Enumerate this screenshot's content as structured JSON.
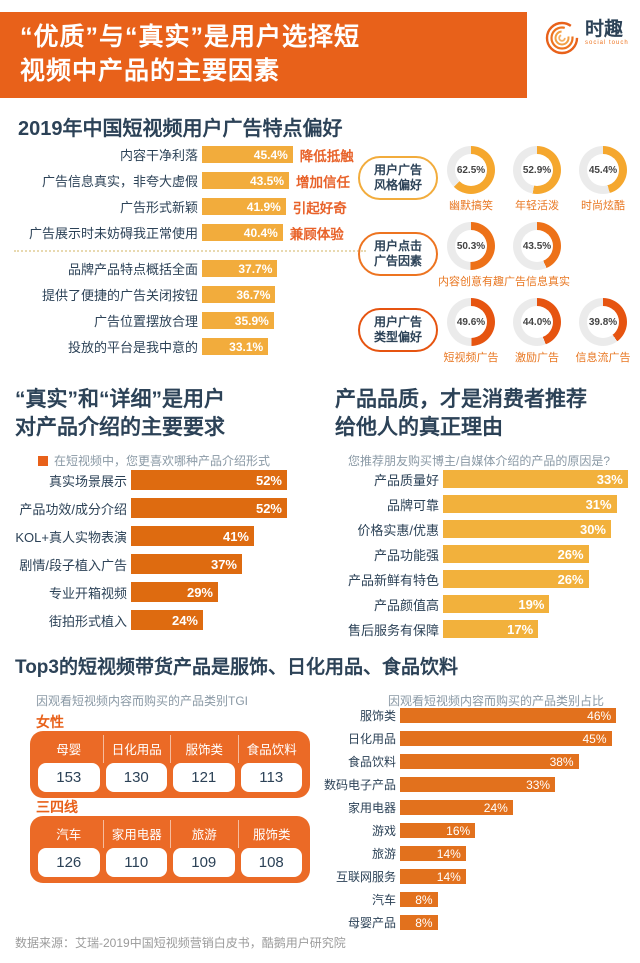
{
  "header": {
    "title_line1": "“优质”与“真实”是用户选择短",
    "title_line2": "视频中产品的主要因素",
    "logo_text": "时趣",
    "logo_subtext": "social touch"
  },
  "sections": {
    "s1_title": "2019年中国短视频用户广告特点偏好",
    "s2_title_line1": "“真实”和“详细”是用户",
    "s2_title_line2": "对产品介绍的主要要求",
    "s2_legend": "在短视频中，您更喜欢哪种产品介绍形式",
    "s3_title_line1": "产品品质，才是消费者推荐",
    "s3_title_line2": "给他人的真正理由",
    "s3_question": "您推荐朋友购买博主/自媒体介绍的产品的原因是?",
    "s4_title": "Top3的短视频带货产品是服饰、日化用品、食品饮料",
    "s4_left_subtitle": "因观看短视频内容而购买的产品类别TGI",
    "s4_right_subtitle": "因观看短视频内容而购买的产品类别占比"
  },
  "footer": {
    "source": "数据来源：艾瑞-2019中国短视频营销白皮书，酷鹅用户研究院"
  },
  "colors": {
    "header_orange": "#E8611A",
    "navy": "#2C4257",
    "yellow_bar": "#F2AC3C",
    "orange_bar": "#DE6B10",
    "bottom_bar": "#E2711D",
    "table_orange": "#EB6A26",
    "note_orange": "#E8622A",
    "donut_yellow": "#F5A72E",
    "donut_orange": "#ED7118",
    "donut_red_orange": "#E65410",
    "donut_track": "#ebebeb",
    "subtitle_gray": "#8A99A5"
  },
  "chart_data": [
    {
      "id": "ad_trait_preference",
      "type": "bar",
      "orientation": "horizontal",
      "title": "2019年中国短视频用户广告特点偏好",
      "categories": [
        "内容干净利落",
        "广告信息真实，非夸大虚假",
        "广告形式新颖",
        "广告展示时未妨碍我正常使用",
        "品牌产品特点概括全面",
        "提供了便捷的广告关闭按钮",
        "广告位置摆放合理",
        "投放的平台是我中意的"
      ],
      "values": [
        45.4,
        43.5,
        41.9,
        40.4,
        37.7,
        36.7,
        35.9,
        33.1
      ],
      "labels": [
        "45.4%",
        "43.5%",
        "41.9%",
        "40.4%",
        "37.7%",
        "36.7%",
        "35.9%",
        "33.1%"
      ],
      "annotations": [
        "降低抵触",
        "增加信任",
        "引起好奇",
        "兼顾体验"
      ],
      "xlim": [
        0,
        50
      ]
    },
    {
      "id": "ad_style_preference",
      "type": "pie",
      "group_line1": "用户广告",
      "group_line2": "风格偏好",
      "items": [
        {
          "label": "幽默搞笑",
          "value": 62.5,
          "pct": "62.5%"
        },
        {
          "label": "年轻活泼",
          "value": 52.9,
          "pct": "52.9%"
        },
        {
          "label": "时尚炫酷",
          "value": 45.4,
          "pct": "45.4%"
        }
      ]
    },
    {
      "id": "ad_click_factor",
      "type": "pie",
      "group_line1": "用户点击",
      "group_line2": "广告因素",
      "items": [
        {
          "label": "内容创意有趣",
          "value": 50.3,
          "pct": "50.3%"
        },
        {
          "label": "广告信息真实",
          "value": 43.5,
          "pct": "43.5%"
        }
      ]
    },
    {
      "id": "ad_type_preference",
      "type": "pie",
      "group_line1": "用户广告",
      "group_line2": "类型偏好",
      "items": [
        {
          "label": "短视频广告",
          "value": 49.6,
          "pct": "49.6%"
        },
        {
          "label": "激励广告",
          "value": 44.0,
          "pct": "44.0%"
        },
        {
          "label": "信息流广告",
          "value": 39.8,
          "pct": "39.8%"
        }
      ]
    },
    {
      "id": "product_intro_format",
      "type": "bar",
      "orientation": "horizontal",
      "title": "“真实”和“详细”是用户对产品介绍的主要要求",
      "question": "在短视频中，您更喜欢哪种产品介绍形式",
      "categories": [
        "真实场景展示",
        "产品功效/成分介绍",
        "KOL+真人实物表演",
        "剧情/段子植入广告",
        "专业开箱视频",
        "街拍形式植入"
      ],
      "values": [
        52,
        52,
        41,
        37,
        29,
        24
      ],
      "labels": [
        "52%",
        "52%",
        "41%",
        "37%",
        "29%",
        "24%"
      ],
      "xlim": [
        0,
        60
      ]
    },
    {
      "id": "recommend_reason",
      "type": "bar",
      "orientation": "horizontal",
      "title": "产品品质，才是消费者推荐给他人的真正理由",
      "question": "您推荐朋友购买博主/自媒体介绍的产品的原因是?",
      "categories": [
        "产品质量好",
        "品牌可靠",
        "价格实惠/优惠",
        "产品功能强",
        "产品新鲜有特色",
        "产品颜值高",
        "售后服务有保障"
      ],
      "values": [
        33,
        31,
        30,
        26,
        26,
        19,
        17
      ],
      "labels": [
        "33%",
        "31%",
        "30%",
        "26%",
        "26%",
        "19%",
        "17%"
      ],
      "xlim": [
        0,
        35
      ]
    },
    {
      "id": "tgi_female",
      "type": "table",
      "group": "女性",
      "headers": [
        "母婴",
        "日化用品",
        "服饰类",
        "食品饮料"
      ],
      "values": [
        153,
        130,
        121,
        113
      ]
    },
    {
      "id": "tgi_tier34",
      "type": "table",
      "group": "三四线",
      "headers": [
        "汽车",
        "家用电器",
        "旅游",
        "服饰类"
      ],
      "values": [
        126,
        110,
        109,
        108
      ]
    },
    {
      "id": "purchase_category_share",
      "type": "bar",
      "orientation": "horizontal",
      "title": "因观看短视频内容而购买的产品类别占比",
      "categories": [
        "服饰类",
        "日化用品",
        "食品饮料",
        "数码电子产品",
        "家用电器",
        "游戏",
        "旅游",
        "互联网服务",
        "汽车",
        "母婴产品"
      ],
      "values": [
        46,
        45,
        38,
        33,
        24,
        16,
        14,
        14,
        8,
        8
      ],
      "labels": [
        "46%",
        "45%",
        "38%",
        "33%",
        "24%",
        "16%",
        "14%",
        "14%",
        "8%",
        "8%"
      ],
      "xlim": [
        0,
        50
      ]
    }
  ]
}
